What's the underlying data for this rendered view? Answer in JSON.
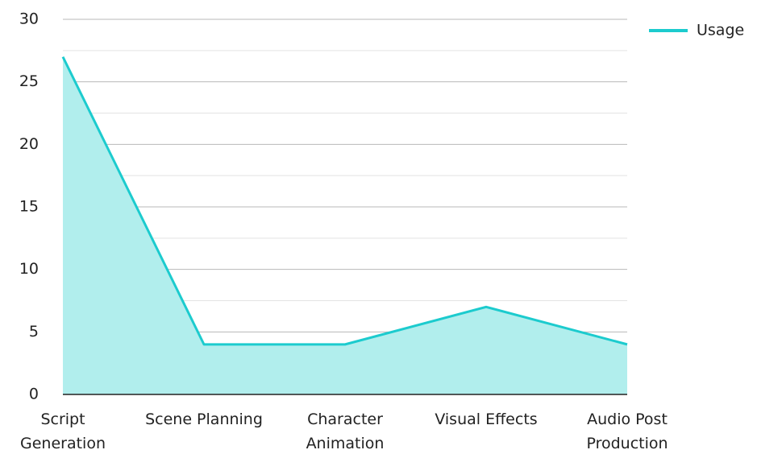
{
  "chart_data": {
    "type": "area",
    "categories": [
      "Script Generation",
      "Scene Planning",
      "Character Animation",
      "Visual Effects",
      "Audio Post Production"
    ],
    "series": [
      {
        "name": "Usage",
        "color": "#1ccbce",
        "fill": "#b1eeed",
        "values": [
          27,
          4,
          4,
          7,
          4
        ]
      }
    ],
    "ylim": [
      0,
      30
    ],
    "yticks": [
      0,
      5,
      10,
      15,
      20,
      25,
      30
    ],
    "minor_yticks": [
      2.5,
      7.5,
      12.5,
      17.5,
      22.5,
      27.5
    ],
    "grid": true,
    "legend": "top-right"
  }
}
